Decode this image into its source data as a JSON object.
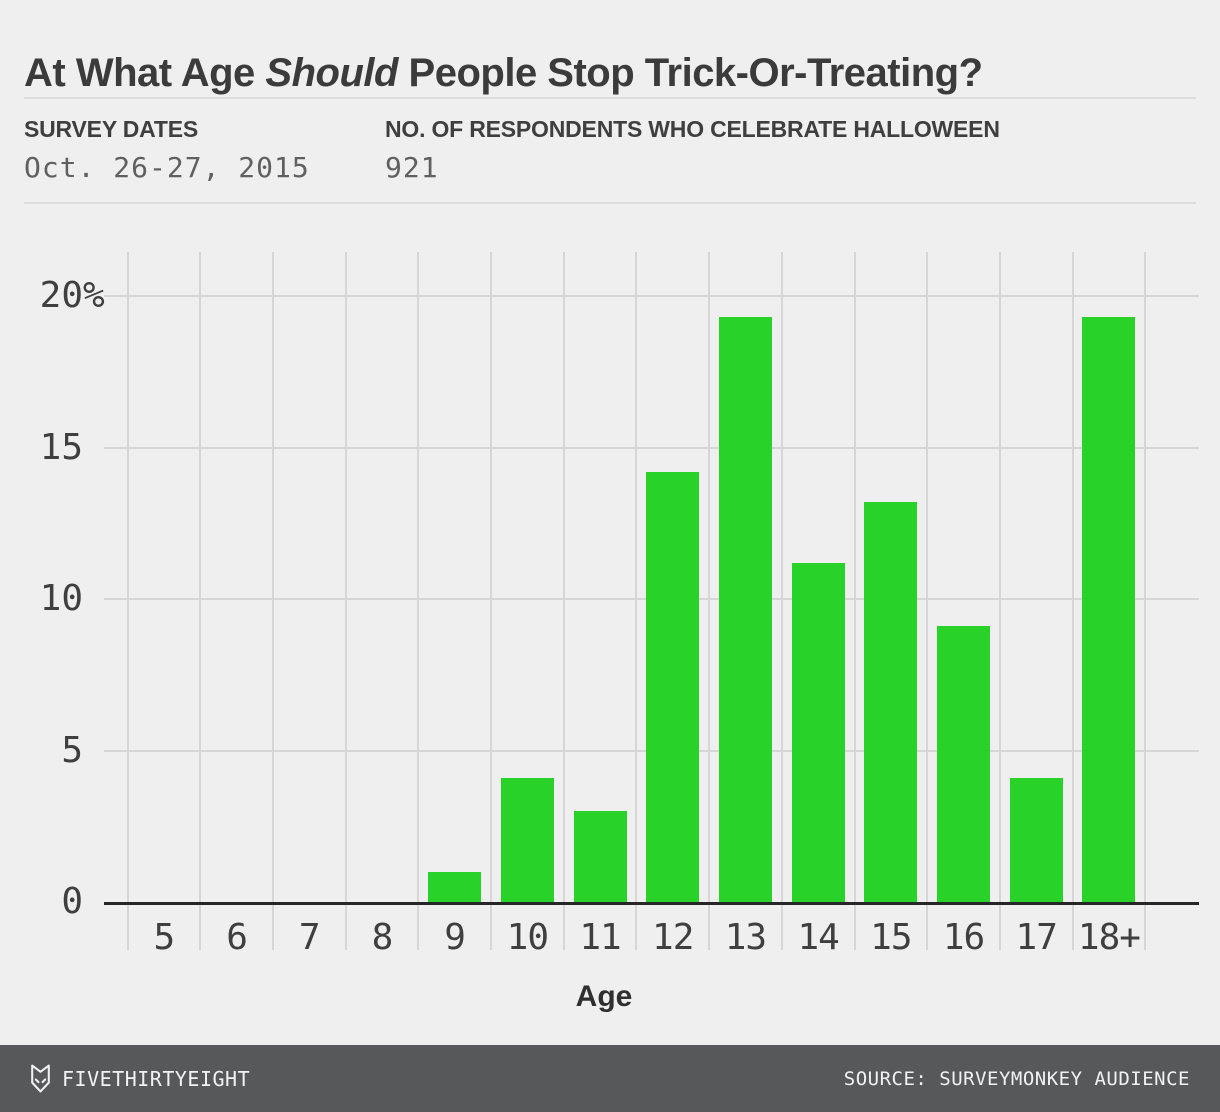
{
  "header": {
    "title_pre": "At What Age ",
    "title_italic": "Should",
    "title_post": " People Stop Trick-Or-Treating?"
  },
  "meta": [
    {
      "label": "SURVEY DATES",
      "value": "Oct. 26-27, 2015"
    },
    {
      "label": "NO. OF RESPONDENTS WHO CELEBRATE HALLOWEEN",
      "value": "921"
    }
  ],
  "chart_data": {
    "type": "bar",
    "title": "At What Age Should People Stop Trick-Or-Treating?",
    "categories": [
      "5",
      "6",
      "7",
      "8",
      "9",
      "10",
      "11",
      "12",
      "13",
      "14",
      "15",
      "16",
      "17",
      "18+"
    ],
    "values": [
      0,
      0,
      0,
      0,
      1.0,
      4.1,
      3.0,
      14.2,
      19.3,
      11.2,
      13.2,
      9.1,
      4.1,
      19.3
    ],
    "xlabel": "Age",
    "ylabel": "",
    "ylim": [
      0,
      21.5
    ],
    "grid": true,
    "legend": false,
    "y_ticks": [
      {
        "value": 20,
        "label": "20",
        "suffix": "%"
      },
      {
        "value": 15,
        "label": "15",
        "suffix": ""
      },
      {
        "value": 10,
        "label": "10",
        "suffix": ""
      },
      {
        "value": 5,
        "label": "5",
        "suffix": ""
      },
      {
        "value": 0,
        "label": "0",
        "suffix": ""
      }
    ]
  },
  "colors": {
    "bar_green": "#28d228",
    "background": "#efefef",
    "gridline": "#d6d6d6",
    "axis": "#262626",
    "footer_bg": "#56585a"
  },
  "footer": {
    "brand": "FIVETHIRTYEIGHT",
    "source": "SOURCE: SURVEYMONKEY AUDIENCE"
  }
}
